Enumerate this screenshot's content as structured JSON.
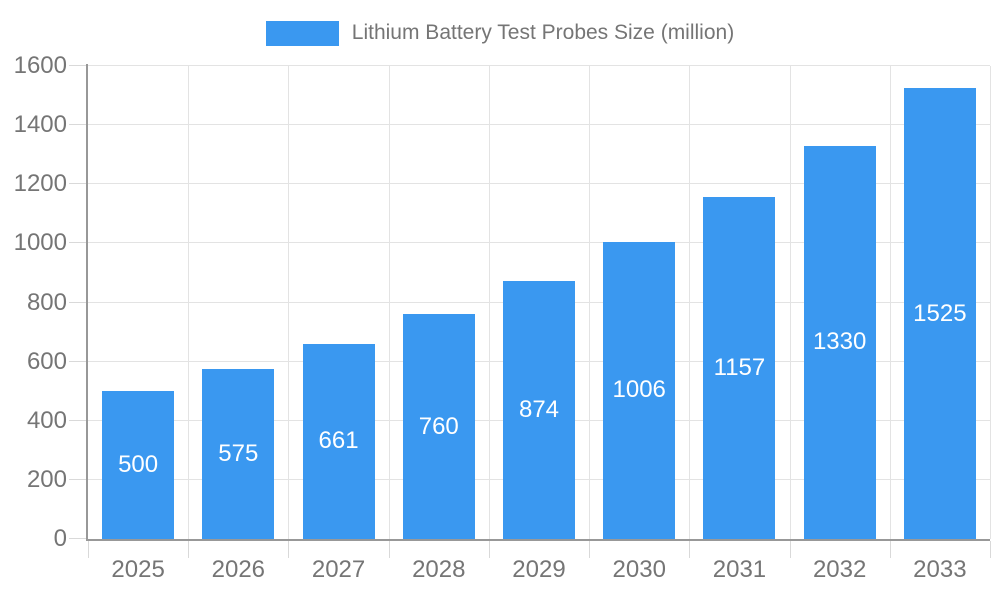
{
  "legend": {
    "label": "Lithium Battery Test Probes Size (million)"
  },
  "chart_data": {
    "type": "bar",
    "title": "Lithium Battery Test Probes Size (million)",
    "categories": [
      "2025",
      "2026",
      "2027",
      "2028",
      "2029",
      "2030",
      "2031",
      "2032",
      "2033"
    ],
    "values": [
      500,
      575,
      661,
      760,
      874,
      1006,
      1157,
      1330,
      1525
    ],
    "xlabel": "",
    "ylabel": "",
    "ylim": [
      0,
      1600
    ],
    "yticks": [
      0,
      200,
      400,
      600,
      800,
      1000,
      1200,
      1400,
      1600
    ],
    "grid": true,
    "legend_position": "top",
    "bar_labels": "centered-white",
    "colors": {
      "bar": "#3A98F0",
      "bar_label": "#ffffff",
      "axis_label": "#757575",
      "legend_text": "#757575",
      "gridline": "#e3e3e3",
      "tick": "#d9d9d9",
      "axis_line": "#989898",
      "background": "#ffffff"
    }
  }
}
